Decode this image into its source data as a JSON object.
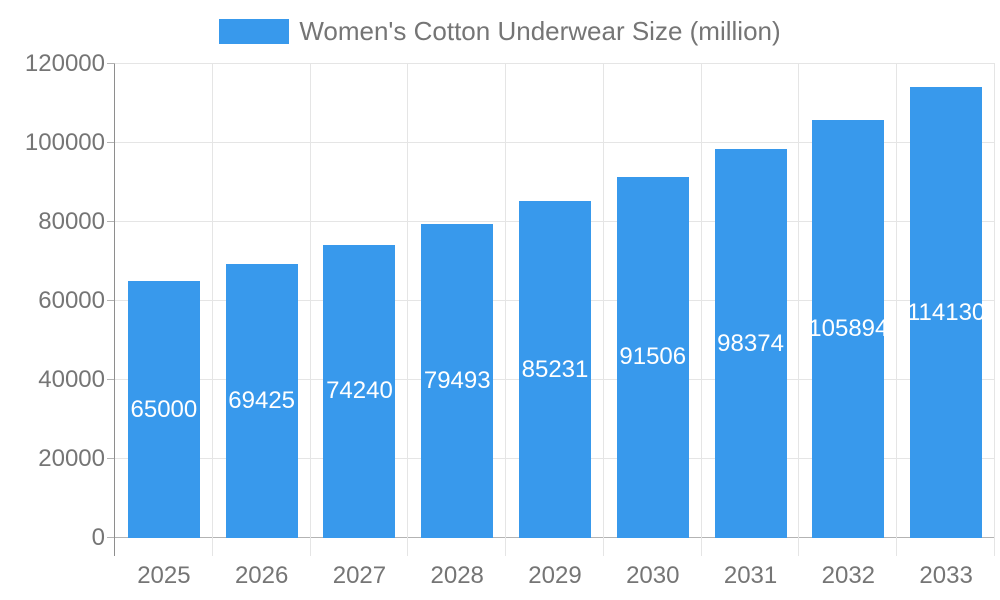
{
  "chart_data": {
    "type": "bar",
    "title": "Women's Cotton Underwear Size (million)",
    "categories": [
      "2025",
      "2026",
      "2027",
      "2028",
      "2029",
      "2030",
      "2031",
      "2032",
      "2033"
    ],
    "series": [
      {
        "name": "Women's Cotton Underwear Size (million)",
        "values": [
          65000,
          69425,
          74240,
          79493,
          85231,
          91506,
          98374,
          105894,
          114130
        ]
      }
    ],
    "xlabel": "",
    "ylabel": "",
    "ylim": [
      0,
      120000
    ],
    "y_ticks": [
      0,
      20000,
      40000,
      60000,
      80000,
      100000,
      120000
    ],
    "grid": true,
    "data_labels": "inside-center-white",
    "legend_position": "top-center"
  },
  "legend": {
    "label": "Women's Cotton Underwear Size (million)"
  },
  "colors": {
    "bar": "#3899EC",
    "grid": "#E5E5E5",
    "axis_x": "#B3B3B3",
    "axis_y": "#8E8E8E",
    "tick": "#B3B3B3",
    "axis_text": "#757575",
    "bar_label_text": "#FFFFFF",
    "background": "#FFFFFF"
  }
}
